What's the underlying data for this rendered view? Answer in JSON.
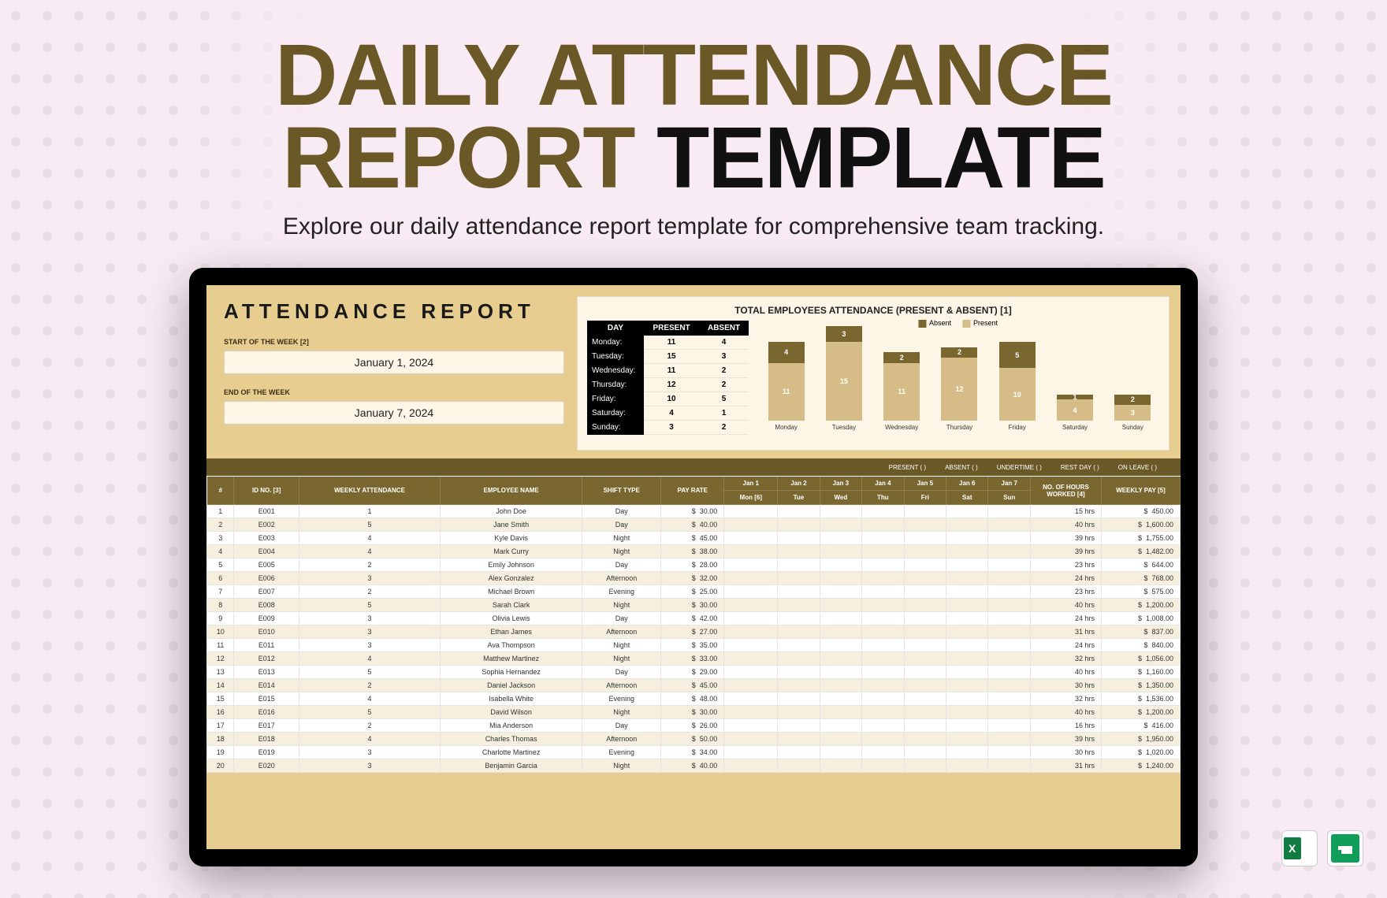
{
  "hero": {
    "line1": "DAILY ATTENDANCE",
    "line2a": "REPORT",
    "line2b": "TEMPLATE",
    "subtitle": "Explore our daily attendance report template for comprehensive team tracking."
  },
  "colors": {
    "olive": "#6a5827",
    "absent": "#7a672f",
    "present": "#d6bc87",
    "page_bg": "#f9ebf4",
    "screen_bg": "#e8cd91",
    "cream": "#fdf6e6"
  },
  "report": {
    "title": "ATTENDANCE REPORT",
    "start_label": "START OF THE WEEK [2]",
    "start_value": "January 1, 2024",
    "end_label": "END OF THE WEEK",
    "end_value": "January 7, 2024"
  },
  "chart": {
    "title": "TOTAL EMPLOYEES ATTENDANCE (PRESENT & ABSENT) [1]",
    "header_day": "DAY",
    "header_present": "PRESENT",
    "header_absent": "ABSENT",
    "legend_absent": "Absent",
    "legend_present": "Present",
    "max": 18,
    "days": [
      {
        "day": "Monday:",
        "label": "Monday",
        "present": 11,
        "absent": 4
      },
      {
        "day": "Tuesday:",
        "label": "Tuesday",
        "present": 15,
        "absent": 3
      },
      {
        "day": "Wednesday:",
        "label": "Wednesday",
        "present": 11,
        "absent": 2
      },
      {
        "day": "Thursday:",
        "label": "Thursday",
        "present": 12,
        "absent": 2
      },
      {
        "day": "Friday:",
        "label": "Friday",
        "present": 10,
        "absent": 5
      },
      {
        "day": "Saturday:",
        "label": "Saturday",
        "present": 4,
        "absent": 1
      },
      {
        "day": "Sunday:",
        "label": "Sunday",
        "present": 3,
        "absent": 2
      }
    ]
  },
  "status_legend": [
    "PRESENT (   )",
    "ABSENT (   )",
    "UNDERTIME (   )",
    "REST DAY (   )",
    "ON LEAVE (   )"
  ],
  "table": {
    "cols": {
      "num": "#",
      "id": "ID NO. [3]",
      "weekly_att": "WEEKLY ATTENDANCE",
      "name": "EMPLOYEE NAME",
      "shift": "SHIFT TYPE",
      "rate": "PAY RATE",
      "hours": "NO. OF HOURS WORKED [4]",
      "pay": "WEEKLY PAY [5]"
    },
    "dates": [
      "Jan 1",
      "Jan 2",
      "Jan 3",
      "Jan 4",
      "Jan 5",
      "Jan 6",
      "Jan 7"
    ],
    "dows": [
      "Mon [6]",
      "Tue",
      "Wed",
      "Thu",
      "Fri",
      "Sat",
      "Sun"
    ],
    "rows": [
      {
        "n": 1,
        "id": "E001",
        "wa": 1,
        "name": "John Doe",
        "shift": "Day",
        "rate": "30.00",
        "hrs": "15 hrs",
        "pay": "450.00"
      },
      {
        "n": 2,
        "id": "E002",
        "wa": 5,
        "name": "Jane Smith",
        "shift": "Day",
        "rate": "40.00",
        "hrs": "40 hrs",
        "pay": "1,600.00"
      },
      {
        "n": 3,
        "id": "E003",
        "wa": 4,
        "name": "Kyle Davis",
        "shift": "Night",
        "rate": "45.00",
        "hrs": "39 hrs",
        "pay": "1,755.00"
      },
      {
        "n": 4,
        "id": "E004",
        "wa": 4,
        "name": "Mark Curry",
        "shift": "Night",
        "rate": "38.00",
        "hrs": "39 hrs",
        "pay": "1,482.00"
      },
      {
        "n": 5,
        "id": "E005",
        "wa": 2,
        "name": "Emily Johnson",
        "shift": "Day",
        "rate": "28.00",
        "hrs": "23 hrs",
        "pay": "644.00"
      },
      {
        "n": 6,
        "id": "E006",
        "wa": 3,
        "name": "Alex Gonzalez",
        "shift": "Afternoon",
        "rate": "32.00",
        "hrs": "24 hrs",
        "pay": "768.00"
      },
      {
        "n": 7,
        "id": "E007",
        "wa": 2,
        "name": "Michael Brown",
        "shift": "Evening",
        "rate": "25.00",
        "hrs": "23 hrs",
        "pay": "575.00"
      },
      {
        "n": 8,
        "id": "E008",
        "wa": 5,
        "name": "Sarah Clark",
        "shift": "Night",
        "rate": "30.00",
        "hrs": "40 hrs",
        "pay": "1,200.00"
      },
      {
        "n": 9,
        "id": "E009",
        "wa": 3,
        "name": "Olivia Lewis",
        "shift": "Day",
        "rate": "42.00",
        "hrs": "24 hrs",
        "pay": "1,008.00"
      },
      {
        "n": 10,
        "id": "E010",
        "wa": 3,
        "name": "Ethan James",
        "shift": "Afternoon",
        "rate": "27.00",
        "hrs": "31 hrs",
        "pay": "837.00"
      },
      {
        "n": 11,
        "id": "E011",
        "wa": 3,
        "name": "Ava Thompson",
        "shift": "Night",
        "rate": "35.00",
        "hrs": "24 hrs",
        "pay": "840.00"
      },
      {
        "n": 12,
        "id": "E012",
        "wa": 4,
        "name": "Matthew Martinez",
        "shift": "Night",
        "rate": "33.00",
        "hrs": "32 hrs",
        "pay": "1,056.00"
      },
      {
        "n": 13,
        "id": "E013",
        "wa": 5,
        "name": "Sophia Hernandez",
        "shift": "Day",
        "rate": "29.00",
        "hrs": "40 hrs",
        "pay": "1,160.00"
      },
      {
        "n": 14,
        "id": "E014",
        "wa": 2,
        "name": "Daniel Jackson",
        "shift": "Afternoon",
        "rate": "45.00",
        "hrs": "30 hrs",
        "pay": "1,350.00"
      },
      {
        "n": 15,
        "id": "E015",
        "wa": 4,
        "name": "Isabella White",
        "shift": "Evening",
        "rate": "48.00",
        "hrs": "32 hrs",
        "pay": "1,536.00"
      },
      {
        "n": 16,
        "id": "E016",
        "wa": 5,
        "name": "David Wilson",
        "shift": "Night",
        "rate": "30.00",
        "hrs": "40 hrs",
        "pay": "1,200.00"
      },
      {
        "n": 17,
        "id": "E017",
        "wa": 2,
        "name": "Mia Anderson",
        "shift": "Day",
        "rate": "26.00",
        "hrs": "16 hrs",
        "pay": "416.00"
      },
      {
        "n": 18,
        "id": "E018",
        "wa": 4,
        "name": "Charles Thomas",
        "shift": "Afternoon",
        "rate": "50.00",
        "hrs": "39 hrs",
        "pay": "1,950.00"
      },
      {
        "n": 19,
        "id": "E019",
        "wa": 3,
        "name": "Charlotte Martinez",
        "shift": "Evening",
        "rate": "34.00",
        "hrs": "30 hrs",
        "pay": "1,020.00"
      },
      {
        "n": 20,
        "id": "E020",
        "wa": 3,
        "name": "Benjamin Garcia",
        "shift": "Night",
        "rate": "40.00",
        "hrs": "31 hrs",
        "pay": "1,240.00"
      }
    ]
  }
}
